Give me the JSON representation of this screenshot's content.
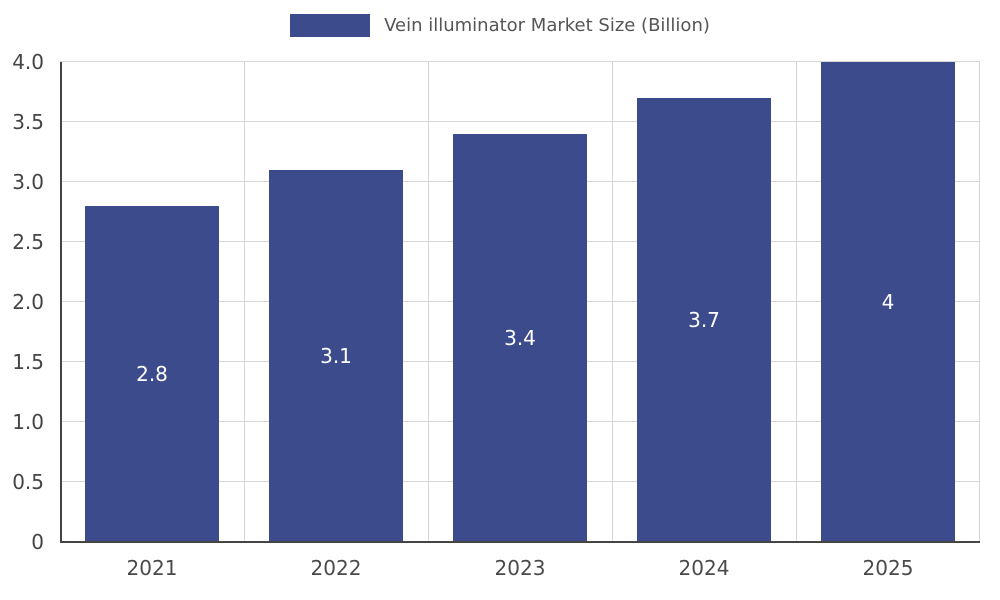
{
  "colors": {
    "bar": "#3B4B8C",
    "grid": "#d7d7d7",
    "axis": "#444444",
    "bar_label": "#ffffff"
  },
  "legend": {
    "swatch_color": "#3B4B8C"
  },
  "chart_data": {
    "type": "bar",
    "title": "Vein illuminator Market Size (Billion)",
    "categories": [
      "2021",
      "2022",
      "2023",
      "2024",
      "2025"
    ],
    "values": [
      2.8,
      3.1,
      3.4,
      3.7,
      4
    ],
    "value_labels": [
      "2.8",
      "3.1",
      "3.4",
      "3.7",
      "4"
    ],
    "xlabel": "",
    "ylabel": "",
    "ylim": [
      0,
      4.0
    ],
    "ytick_step": 0.5,
    "yticks": [
      "0",
      "0.5",
      "1.0",
      "1.5",
      "2.0",
      "2.5",
      "3.0",
      "3.5",
      "4.0"
    ],
    "grid": true,
    "legend_position": "top-center",
    "bar_label_position": "center-inside"
  }
}
